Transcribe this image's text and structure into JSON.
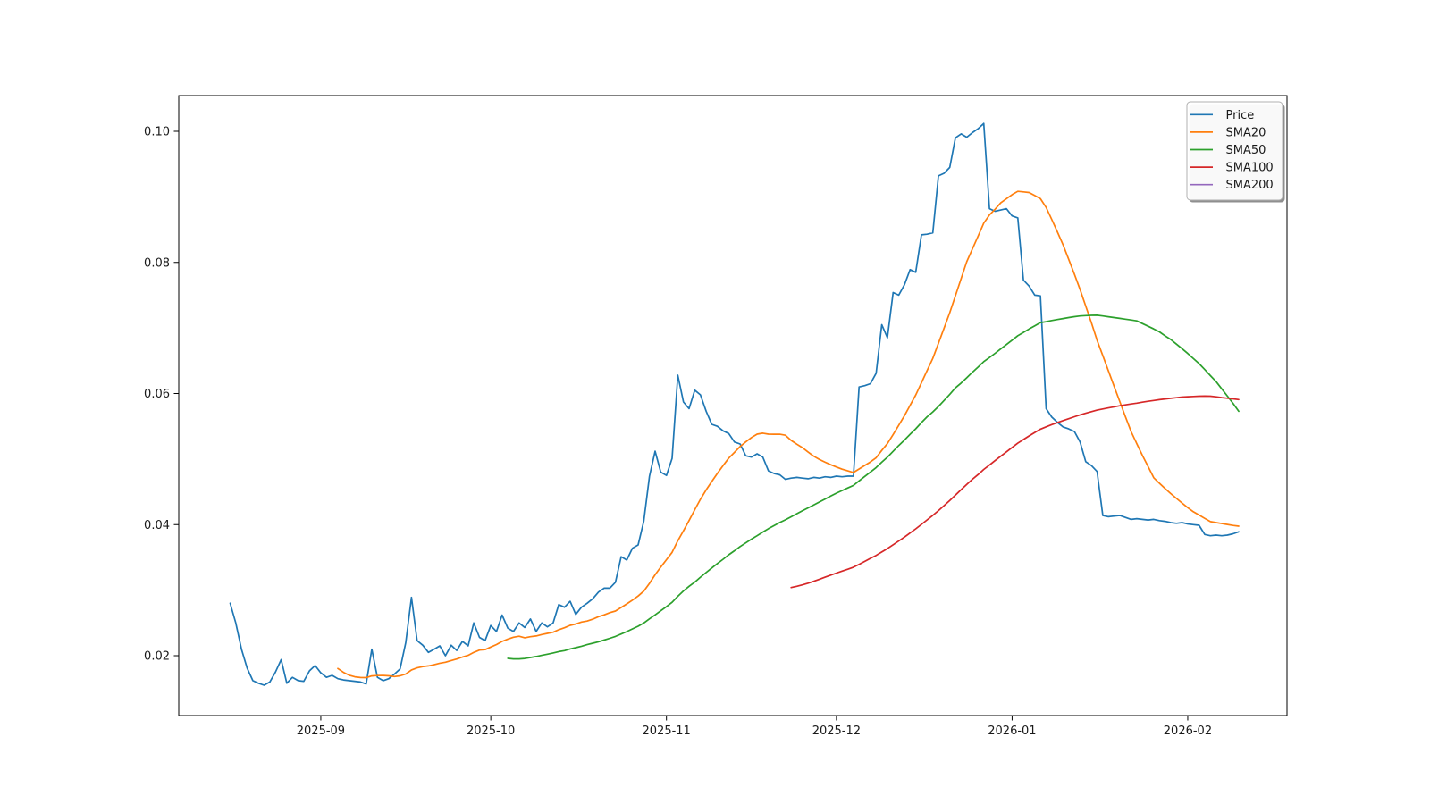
{
  "page": {
    "background": "#ffffff"
  },
  "chart_data": {
    "type": "line",
    "title": "",
    "xlabel": "",
    "ylabel": "",
    "grid": false,
    "legend": {
      "position": "upper right",
      "shadow": true,
      "entries": [
        "Price",
        "SMA20",
        "SMA50",
        "SMA100",
        "SMA200"
      ]
    },
    "x_tick_labels": [
      "2025-09",
      "2025-10",
      "2025-11",
      "2025-12",
      "2026-01",
      "2026-02"
    ],
    "y_tick_labels": [
      "0.02",
      "0.04",
      "0.06",
      "0.08",
      "0.10"
    ],
    "y_tick_values": [
      0.02,
      0.04,
      0.06,
      0.08,
      0.1
    ],
    "ylim": [
      0.0109,
      0.1055
    ],
    "xlim_dates": [
      "2025-08-07",
      "2026-02-19"
    ],
    "dates": [
      "2025-08-16",
      "2025-08-17",
      "2025-08-18",
      "2025-08-19",
      "2025-08-20",
      "2025-08-21",
      "2025-08-22",
      "2025-08-23",
      "2025-08-24",
      "2025-08-25",
      "2025-08-26",
      "2025-08-27",
      "2025-08-28",
      "2025-08-29",
      "2025-08-30",
      "2025-08-31",
      "2025-09-01",
      "2025-09-02",
      "2025-09-03",
      "2025-09-04",
      "2025-09-05",
      "2025-09-06",
      "2025-09-07",
      "2025-09-08",
      "2025-09-09",
      "2025-09-10",
      "2025-09-11",
      "2025-09-12",
      "2025-09-13",
      "2025-09-14",
      "2025-09-15",
      "2025-09-16",
      "2025-09-17",
      "2025-09-18",
      "2025-09-19",
      "2025-09-20",
      "2025-09-21",
      "2025-09-22",
      "2025-09-23",
      "2025-09-24",
      "2025-09-25",
      "2025-09-26",
      "2025-09-27",
      "2025-09-28",
      "2025-09-29",
      "2025-09-30",
      "2025-10-01",
      "2025-10-02",
      "2025-10-03",
      "2025-10-04",
      "2025-10-05",
      "2025-10-06",
      "2025-10-07",
      "2025-10-08",
      "2025-10-09",
      "2025-10-10",
      "2025-10-11",
      "2025-10-12",
      "2025-10-13",
      "2025-10-14",
      "2025-10-15",
      "2025-10-16",
      "2025-10-17",
      "2025-10-18",
      "2025-10-19",
      "2025-10-20",
      "2025-10-21",
      "2025-10-22",
      "2025-10-23",
      "2025-10-24",
      "2025-10-25",
      "2025-10-26",
      "2025-10-27",
      "2025-10-28",
      "2025-10-29",
      "2025-10-30",
      "2025-10-31",
      "2025-11-01",
      "2025-11-02",
      "2025-11-03",
      "2025-11-04",
      "2025-11-05",
      "2025-11-06",
      "2025-11-07",
      "2025-11-08",
      "2025-11-09",
      "2025-11-10",
      "2025-11-11",
      "2025-11-12",
      "2025-11-13",
      "2025-11-14",
      "2025-11-15",
      "2025-11-16",
      "2025-11-17",
      "2025-11-18",
      "2025-11-19",
      "2025-11-20",
      "2025-11-21",
      "2025-11-22",
      "2025-11-23",
      "2025-11-24",
      "2025-11-25",
      "2025-11-26",
      "2025-11-27",
      "2025-11-28",
      "2025-11-29",
      "2025-11-30",
      "2025-12-01",
      "2025-12-02",
      "2025-12-03",
      "2025-12-04",
      "2025-12-05",
      "2025-12-06",
      "2025-12-07",
      "2025-12-08",
      "2025-12-09",
      "2025-12-10",
      "2025-12-11",
      "2025-12-12",
      "2025-12-13",
      "2025-12-14",
      "2025-12-15",
      "2025-12-16",
      "2025-12-17",
      "2025-12-18",
      "2025-12-19",
      "2025-12-20",
      "2025-12-21",
      "2025-12-22",
      "2025-12-23",
      "2025-12-24",
      "2025-12-25",
      "2025-12-26",
      "2025-12-27",
      "2025-12-28",
      "2025-12-29",
      "2025-12-30",
      "2025-12-31",
      "2026-01-01",
      "2026-01-02",
      "2026-01-03",
      "2026-01-04",
      "2026-01-05",
      "2026-01-06",
      "2026-01-07",
      "2026-01-08",
      "2026-01-09",
      "2026-01-10",
      "2026-01-11",
      "2026-01-12",
      "2026-01-13",
      "2026-01-14",
      "2026-01-15",
      "2026-01-16",
      "2026-01-17",
      "2026-01-18",
      "2026-01-19",
      "2026-01-20",
      "2026-01-21",
      "2026-01-22",
      "2026-01-23",
      "2026-01-24",
      "2026-01-25",
      "2026-01-26",
      "2026-01-27",
      "2026-01-28",
      "2026-01-29",
      "2026-01-30",
      "2026-01-31",
      "2026-02-01",
      "2026-02-02",
      "2026-02-03",
      "2026-02-04",
      "2026-02-05",
      "2026-02-06",
      "2026-02-07",
      "2026-02-08",
      "2026-02-09",
      "2026-02-10"
    ],
    "series": [
      {
        "name": "Price",
        "color": "#1f77b4",
        "kind": "price",
        "values": [
          0.028,
          0.025,
          0.021,
          0.0181,
          0.0162,
          0.0158,
          0.0155,
          0.016,
          0.0175,
          0.0194,
          0.0158,
          0.0167,
          0.0162,
          0.0161,
          0.0177,
          0.0185,
          0.0174,
          0.0167,
          0.017,
          0.0165,
          0.0163,
          0.0162,
          0.0161,
          0.016,
          0.0157,
          0.021,
          0.0167,
          0.0162,
          0.0165,
          0.0172,
          0.018,
          0.022,
          0.0289,
          0.0223,
          0.0216,
          0.0205,
          0.021,
          0.0215,
          0.02,
          0.0216,
          0.0208,
          0.0222,
          0.0215,
          0.025,
          0.0228,
          0.0223,
          0.0246,
          0.0237,
          0.0262,
          0.0242,
          0.0237,
          0.025,
          0.0243,
          0.0256,
          0.0237,
          0.025,
          0.0244,
          0.025,
          0.0278,
          0.0274,
          0.0283,
          0.0263,
          0.0274,
          0.028,
          0.0287,
          0.0297,
          0.0303,
          0.0303,
          0.0312,
          0.0351,
          0.0346,
          0.0364,
          0.0369,
          0.0405,
          0.0474,
          0.0512,
          0.048,
          0.0475,
          0.0501,
          0.0628,
          0.0587,
          0.0577,
          0.0605,
          0.0598,
          0.0573,
          0.0553,
          0.055,
          0.0543,
          0.0539,
          0.0526,
          0.0523,
          0.0505,
          0.0503,
          0.0508,
          0.0503,
          0.0482,
          0.0478,
          0.0476,
          0.0469,
          0.0471,
          0.0472,
          0.0471,
          0.047,
          0.0472,
          0.0471,
          0.0473,
          0.0472,
          0.0474,
          0.0473,
          0.0474,
          0.0474,
          0.061,
          0.0612,
          0.0615,
          0.0631,
          0.0705,
          0.0685,
          0.0754,
          0.075,
          0.0766,
          0.0789,
          0.0785,
          0.0842,
          0.0843,
          0.0845,
          0.0932,
          0.0936,
          0.0945,
          0.099,
          0.0996,
          0.0991,
          0.0998,
          0.1004,
          0.1012,
          0.0882,
          0.0878,
          0.088,
          0.0882,
          0.0871,
          0.0868,
          0.0773,
          0.0764,
          0.075,
          0.0749,
          0.0577,
          0.0564,
          0.0556,
          0.0549,
          0.0546,
          0.0542,
          0.0526,
          0.0496,
          0.049,
          0.0481,
          0.0414,
          0.0412,
          0.0413,
          0.0414,
          0.0411,
          0.0408,
          0.0409,
          0.0408,
          0.0407,
          0.0408,
          0.0406,
          0.0405,
          0.0403,
          0.0402,
          0.0403,
          0.0401,
          0.04,
          0.0399,
          0.0385,
          0.0383,
          0.0384,
          0.0383,
          0.0384,
          0.0386,
          0.0389
        ]
      },
      {
        "name": "SMA20",
        "color": "#ff7f0e",
        "kind": "sma",
        "period": 20
      },
      {
        "name": "SMA50",
        "color": "#2ca02c",
        "kind": "sma",
        "period": 50
      },
      {
        "name": "SMA100",
        "color": "#d62728",
        "kind": "sma",
        "period": 100
      },
      {
        "name": "SMA200",
        "color": "#9467bd",
        "kind": "sma",
        "period": 200
      }
    ]
  }
}
